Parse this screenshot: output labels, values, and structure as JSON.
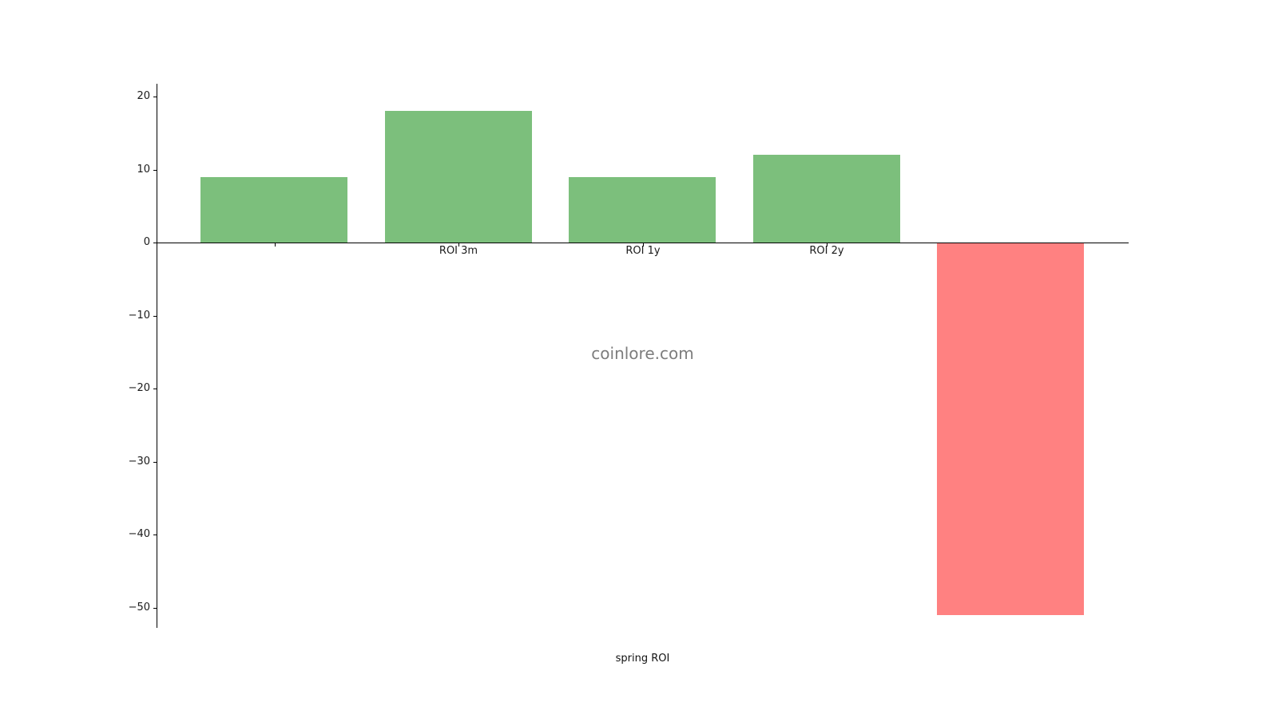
{
  "figure": {
    "background": "#ffffff"
  },
  "watermark": {
    "text": "coinlore.com",
    "color": "#7d7d7d"
  },
  "chart_data": {
    "type": "bar",
    "title": "",
    "xlabel": "spring ROI",
    "ylabel": "",
    "categories": [
      "",
      "ROI 3m",
      "ROI 1y",
      "ROI 2y",
      ""
    ],
    "values": [
      9,
      18,
      9,
      12,
      -51
    ],
    "bar_colors": [
      "#7cbf7c",
      "#7cbf7c",
      "#7cbf7c",
      "#7cbf7c",
      "#ff8181"
    ],
    "positive_color": "#7cbf7c",
    "negative_color": "#ff8181",
    "yticks": [
      20,
      10,
      0,
      -10,
      -20,
      -30,
      -40,
      -50
    ],
    "ytick_labels": [
      "20",
      "10",
      "0",
      "−10",
      "−20",
      "−30",
      "−40",
      "−50"
    ],
    "ylim": [
      -52.75,
      21.75
    ],
    "xlim": [
      -0.64,
      4.64
    ],
    "bar_width": 0.8,
    "grid": false,
    "legend": "none",
    "axis_color": "#000000",
    "tick_label_color": "#1a1a1a"
  }
}
